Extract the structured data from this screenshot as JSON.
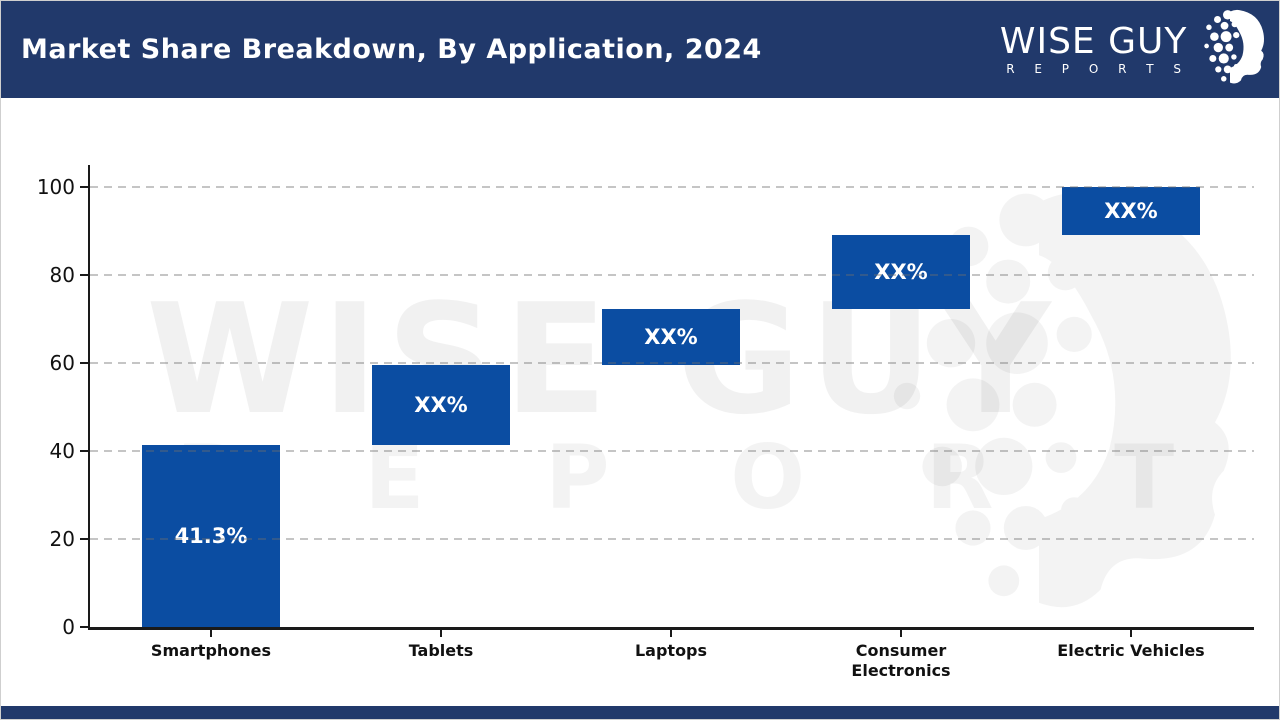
{
  "header": {
    "title": "Market Share Breakdown, By Application, 2024",
    "logo": {
      "wordmark": "WISE GUY",
      "subtext": "R E P O R T S"
    }
  },
  "watermark": {
    "line1": "WISE GUY",
    "line2": "R E P O R T S"
  },
  "footer": {},
  "chart_data": {
    "type": "bar",
    "subtype": "waterfall",
    "title": "Market Share Breakdown, By Application, 2024",
    "categories": [
      "Smartphones",
      "Tablets",
      "Laptops",
      "Consumer Electronics",
      "Electric Vehicles"
    ],
    "segments": [
      {
        "category": "Smartphones",
        "start": 0,
        "end": 41.3,
        "label": "41.3%"
      },
      {
        "category": "Tablets",
        "start": 41.3,
        "end": 59.5,
        "label": "XX%"
      },
      {
        "category": "Laptops",
        "start": 59.5,
        "end": 72.3,
        "label": "XX%"
      },
      {
        "category": "Consumer Electronics",
        "start": 72.3,
        "end": 89.2,
        "label": "XX%"
      },
      {
        "category": "Electric Vehicles",
        "start": 89.2,
        "end": 100,
        "label": "XX%"
      }
    ],
    "yticks": [
      0,
      20,
      40,
      60,
      80,
      100
    ],
    "ylim": [
      0,
      105
    ],
    "xlabel": "",
    "ylabel": "",
    "grid": "dashed-horizontal",
    "legend": "none",
    "colors": {
      "bar": "#0b4da2",
      "bar_label": "#ffffff",
      "axis": "#1a1a1a",
      "grid": "#c8c8c8",
      "header_bg": "#21396b",
      "footer_bg": "#21396b",
      "title_text": "#ffffff"
    }
  }
}
